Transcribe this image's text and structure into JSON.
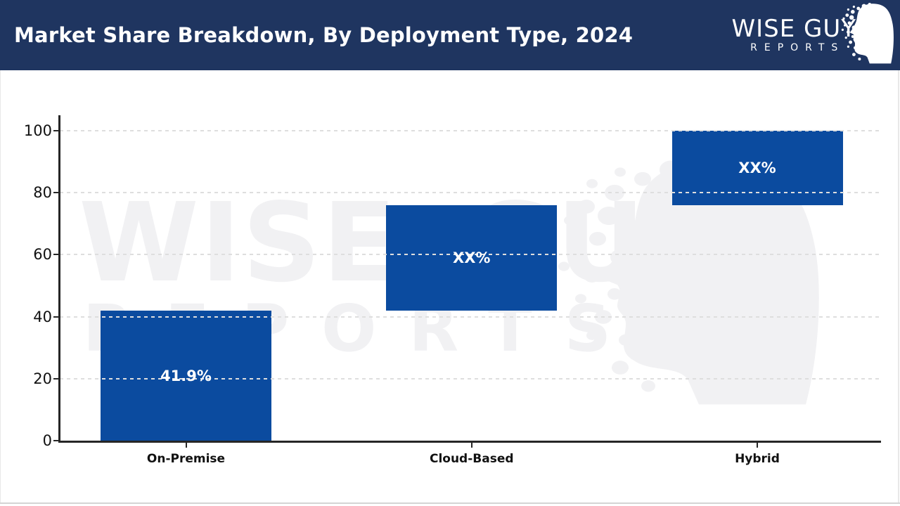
{
  "header": {
    "title": "Market Share Breakdown, By Deployment Type, 2024",
    "logo": {
      "name": "WISE GUY",
      "sub": "REPORTS"
    }
  },
  "watermark": {
    "line1": "WISE GUY",
    "line2": "REPORTS"
  },
  "colors": {
    "header_bg": "#1f3560",
    "bar": "#0b4b9f",
    "grid": "#dedede",
    "axis": "#262626",
    "label_on_bar": "#ffffff",
    "watermark": "#f1f1f3"
  },
  "chart_data": {
    "type": "bar",
    "variant": "floating-segment-waterfall",
    "title": "Market Share Breakdown, By Deployment Type, 2024",
    "categories": [
      "On-Premise",
      "Cloud-Based",
      "Hybrid"
    ],
    "segments": [
      {
        "category": "On-Premise",
        "start": 0,
        "end": 41.9,
        "label": "41.9%"
      },
      {
        "category": "Cloud-Based",
        "start": 41.9,
        "end": 76,
        "label": "XX%"
      },
      {
        "category": "Hybrid",
        "start": 76,
        "end": 100,
        "label": "XX%"
      }
    ],
    "xlabel": "",
    "ylabel": "",
    "ylim": [
      0,
      105
    ],
    "yticks": [
      0,
      20,
      40,
      60,
      80,
      100
    ],
    "grid": "horizontal dashed, drawn over bars",
    "legend": "none"
  }
}
